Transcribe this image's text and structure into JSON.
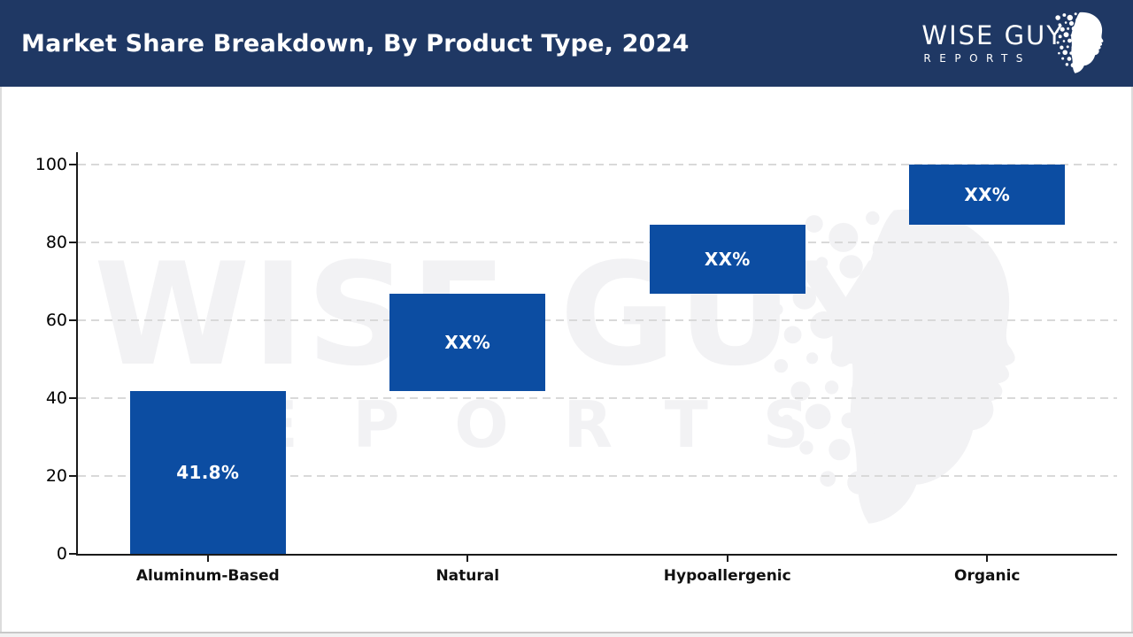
{
  "header": {
    "title": "Market Share Breakdown, By Product Type, 2024",
    "bg_color": "#1f3864"
  },
  "logo": {
    "line1": "WISE GUY",
    "line2": "REPORTS"
  },
  "watermark": {
    "line1": "WISE GUY",
    "line2": "REPORTS",
    "color": "#f2f2f4"
  },
  "chart_data": {
    "type": "bar",
    "variant": "floating-waterfall",
    "title": "Market Share Breakdown, By Product Type, 2024",
    "categories": [
      "Aluminum-Based",
      "Natural",
      "Hypoallergenic",
      "Organic"
    ],
    "series": [
      {
        "name": "Market share (%)",
        "segments": [
          {
            "category": "Aluminum-Based",
            "start": 0,
            "end": 41.8,
            "label": "41.8%"
          },
          {
            "category": "Natural",
            "start": 41.8,
            "end": 66.8,
            "label": "XX%"
          },
          {
            "category": "Hypoallergenic",
            "start": 66.8,
            "end": 84.5,
            "label": "XX%"
          },
          {
            "category": "Organic",
            "start": 84.5,
            "end": 100,
            "label": "XX%"
          }
        ]
      }
    ],
    "xlabel": "",
    "ylabel": "",
    "ylim": [
      0,
      100
    ],
    "yticks": [
      0,
      20,
      40,
      60,
      80,
      100
    ],
    "grid": {
      "horizontal": true,
      "style": "dashed",
      "color": "#d9d9d9"
    },
    "legend": "none",
    "bar_color": "#0c4da2",
    "bar_label_color": "#ffffff",
    "axis_color": "#1a1a1a"
  }
}
